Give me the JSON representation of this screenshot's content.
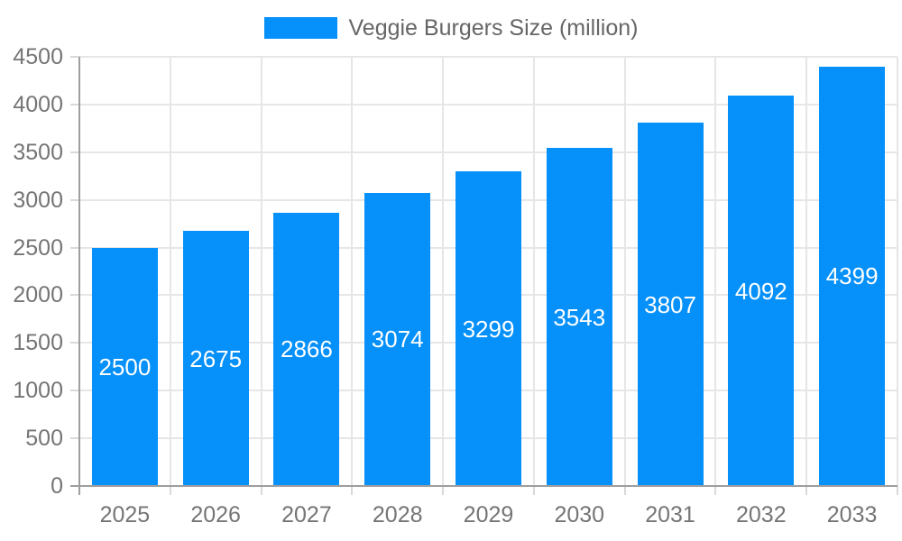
{
  "legend": {
    "label": "Veggie Burgers Size (million)",
    "position": "top"
  },
  "colors": {
    "bar": "#0590fa",
    "bar_label": "#ffffff",
    "grid": "#e6e6e6",
    "axis": "#9e9e9e",
    "tick_text": "#757575",
    "legend_text": "#666666"
  },
  "chart_data": {
    "type": "bar",
    "title": "Veggie Burgers Size (million)",
    "series_name": "Veggie Burgers Size (million)",
    "categories": [
      "2025",
      "2026",
      "2027",
      "2028",
      "2029",
      "2030",
      "2031",
      "2032",
      "2033"
    ],
    "values": [
      2500,
      2675,
      2866,
      3074,
      3299,
      3543,
      3807,
      4092,
      4399
    ],
    "xlabel": "",
    "ylabel": "",
    "ylim": [
      0,
      4500
    ],
    "ytick_step": 500,
    "yticks": [
      0,
      500,
      1000,
      1500,
      2000,
      2500,
      3000,
      3500,
      4000,
      4500
    ],
    "grid": true,
    "legend_position": "top",
    "bar_labels": "inside-center-white"
  }
}
